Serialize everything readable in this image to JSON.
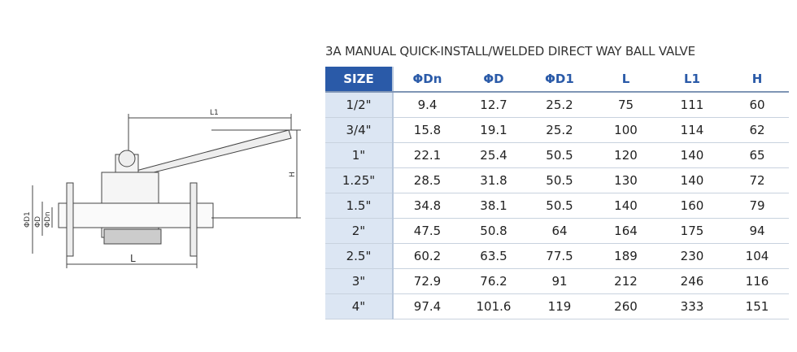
{
  "drawing": {
    "labels": {
      "l1": "L1",
      "h": "H",
      "d1": "ΦD1",
      "d": "ΦD",
      "dn": "ΦDn",
      "l": "L"
    }
  },
  "table": {
    "title": "3A MANUAL QUICK-INSTALL/WELDED DIRECT WAY BALL VALVE",
    "headers": [
      "SIZE",
      "ΦDn",
      "ΦD",
      "ΦD1",
      "L",
      "L1",
      "H"
    ],
    "rows": [
      [
        "1/2\"",
        "9.4",
        "12.7",
        "25.2",
        "75",
        "111",
        "60"
      ],
      [
        "3/4\"",
        "15.8",
        "19.1",
        "25.2",
        "100",
        "114",
        "62"
      ],
      [
        "1\"",
        "22.1",
        "25.4",
        "50.5",
        "120",
        "140",
        "65"
      ],
      [
        "1.25\"",
        "28.5",
        "31.8",
        "50.5",
        "130",
        "140",
        "72"
      ],
      [
        "1.5\"",
        "34.8",
        "38.1",
        "50.5",
        "140",
        "160",
        "79"
      ],
      [
        "2\"",
        "47.5",
        "50.8",
        "64",
        "164",
        "175",
        "94"
      ],
      [
        "2.5\"",
        "60.2",
        "63.5",
        "77.5",
        "189",
        "230",
        "104"
      ],
      [
        "3\"",
        "72.9",
        "76.2",
        "91",
        "212",
        "246",
        "116"
      ],
      [
        "4\"",
        "97.4",
        "101.6",
        "119",
        "260",
        "333",
        "151"
      ]
    ]
  }
}
